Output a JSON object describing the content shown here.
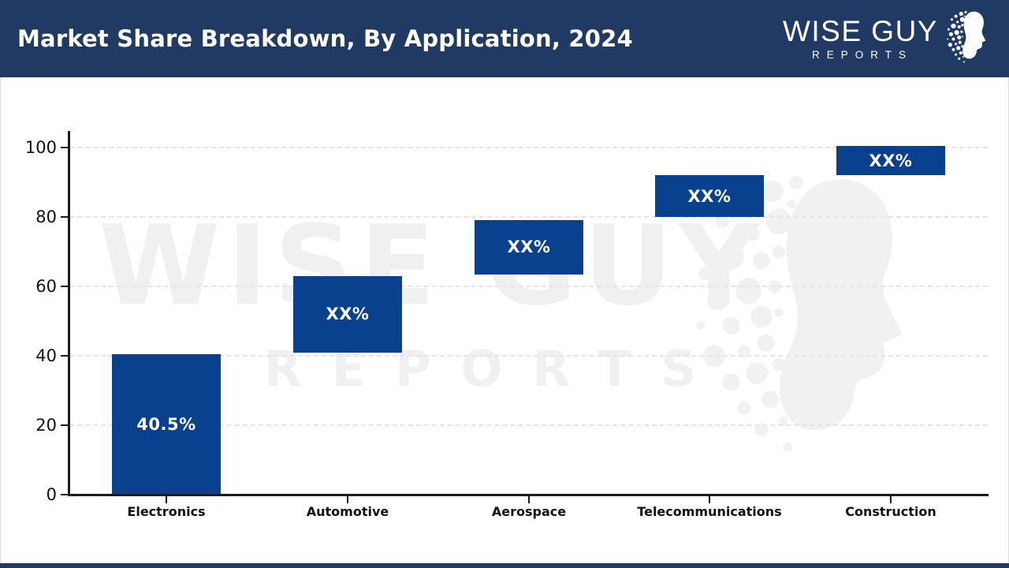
{
  "header": {
    "title": "Market Share Breakdown, By Application, 2024",
    "logo": {
      "wordmark": "WISE GUY",
      "subtitle": "REPORTS"
    }
  },
  "colors": {
    "header_navy": "#213a63",
    "bar_blue": "#0a418f",
    "watermark_gray": "#f0f0f0",
    "axis_black": "#1c1c1c"
  },
  "chart_data": {
    "type": "bar",
    "subtype": "waterfall",
    "title": "Market Share Breakdown, By Application, 2024",
    "categories": [
      "Electronics",
      "Automotive",
      "Aerospace",
      "Telecommunications",
      "Construction"
    ],
    "segments": [
      {
        "category": "Electronics",
        "start": 0,
        "end": 40.5,
        "label": "40.5%"
      },
      {
        "category": "Automotive",
        "start": 41,
        "end": 63,
        "label": "XX%"
      },
      {
        "category": "Aerospace",
        "start": 63.5,
        "end": 79,
        "label": "XX%"
      },
      {
        "category": "Telecommunications",
        "start": 80,
        "end": 92,
        "label": "XX%"
      },
      {
        "category": "Construction",
        "start": 92,
        "end": 100.4,
        "label": "XX%"
      }
    ],
    "y_ticks": [
      0,
      20,
      40,
      60,
      80,
      100
    ],
    "ylim": [
      0,
      105
    ],
    "xlabel": "",
    "ylabel": "",
    "grid": "horizontal-dashed",
    "legend": "none",
    "bar_color": "#0a418f",
    "watermark": {
      "line1": "WISE GUY",
      "line2": "REPORTS"
    }
  }
}
